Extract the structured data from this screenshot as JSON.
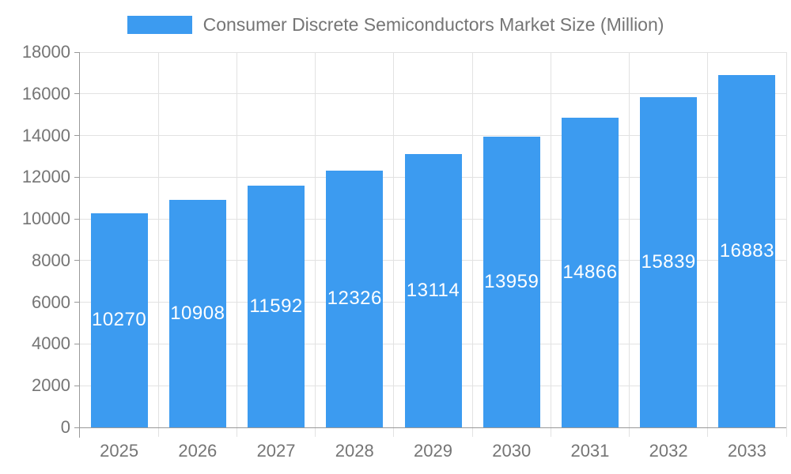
{
  "legend": {
    "label": "Consumer Discrete Semiconductors Market Size (Million)"
  },
  "chart_data": {
    "type": "bar",
    "title": "Consumer Discrete Semiconductors Market Size (Million)",
    "categories": [
      "2025",
      "2026",
      "2027",
      "2028",
      "2029",
      "2030",
      "2031",
      "2032",
      "2033"
    ],
    "series": [
      {
        "name": "Consumer Discrete Semiconductors Market Size (Million)",
        "values": [
          10270,
          10908,
          11592,
          12326,
          13114,
          13959,
          14866,
          15839,
          16883
        ]
      }
    ],
    "value_labels_shown_inside_bars": true,
    "xlabel": "",
    "ylabel": "",
    "ylim": [
      0,
      18000
    ],
    "yticks": [
      0,
      2000,
      4000,
      6000,
      8000,
      10000,
      12000,
      14000,
      16000,
      18000
    ],
    "grid": true,
    "legend_position": "top-center"
  },
  "colors": {
    "bar": "#3C9BF0",
    "value_label_text": "#ffffff",
    "axis_text": "#757575",
    "axis_line": "#999999",
    "gridline": "#e2e2e2",
    "background": "#ffffff"
  }
}
